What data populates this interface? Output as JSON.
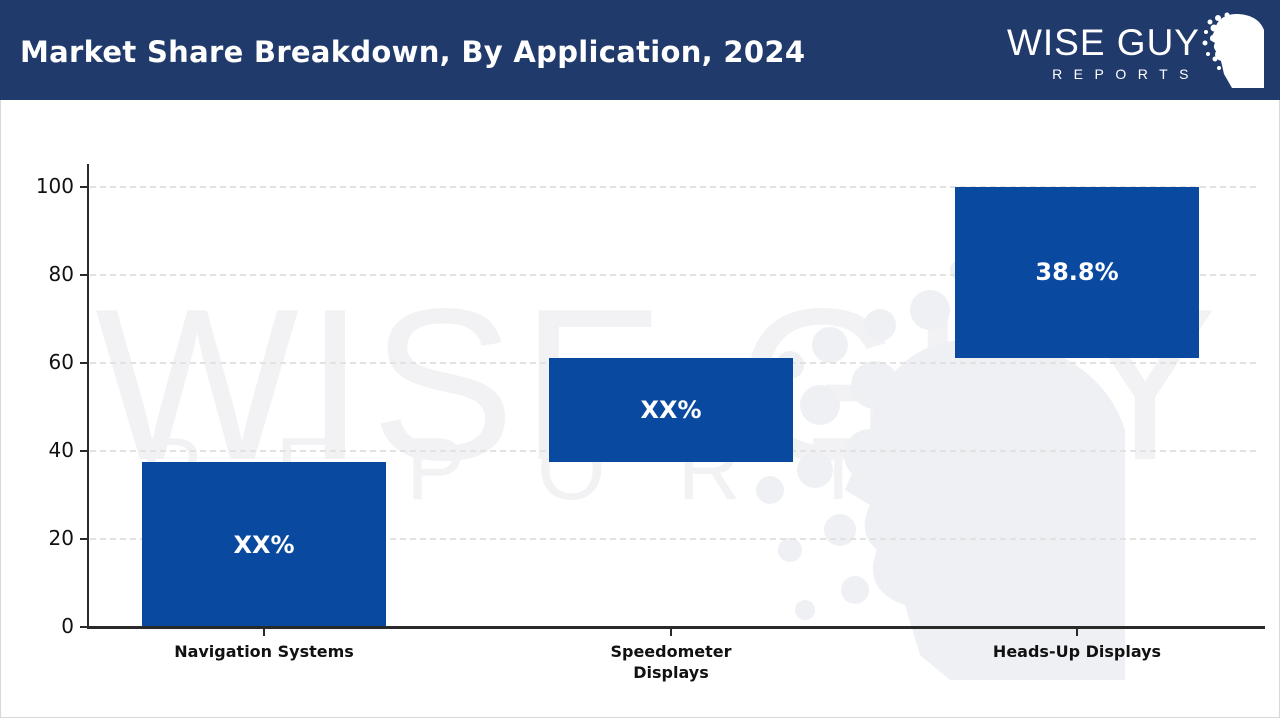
{
  "header": {
    "title": "Market Share Breakdown, By Application, 2024",
    "logo": {
      "line1": "WISE GUY",
      "line2": "REPORTS"
    }
  },
  "watermark": {
    "line1": "WISE GUY",
    "line2": "REPORTS"
  },
  "colors": {
    "header_navy": "#203a6b",
    "bar_blue": "#0a49a0",
    "gridline": "#e2e2e2",
    "axis": "#2a2a2a",
    "watermark_gray": "#f2f2f4"
  },
  "chart_data": {
    "type": "bar",
    "subtype": "waterfall-style floating bars",
    "title": "Market Share Breakdown, By Application, 2024",
    "categories": [
      "Navigation Systems",
      "Speedometer Displays",
      "Heads-Up Displays"
    ],
    "category_tick_lines": [
      [
        "Navigation Systems"
      ],
      [
        "Speedometer",
        "Displays"
      ],
      [
        "Heads-Up Displays"
      ]
    ],
    "bars": [
      {
        "category": "Navigation Systems",
        "start": 0,
        "end": 37.4,
        "label": "XX%"
      },
      {
        "category": "Speedometer Displays",
        "start": 37.4,
        "end": 61.2,
        "label": "XX%"
      },
      {
        "category": "Heads-Up Displays",
        "start": 61.2,
        "end": 100,
        "label": "38.8%"
      }
    ],
    "xlabel": "",
    "ylabel": "",
    "ylim": [
      0,
      100
    ],
    "yticks": [
      0,
      20,
      40,
      60,
      80,
      100
    ],
    "grid": "horizontal dashed",
    "legend": "none",
    "bar_color": "#0a49a0"
  }
}
